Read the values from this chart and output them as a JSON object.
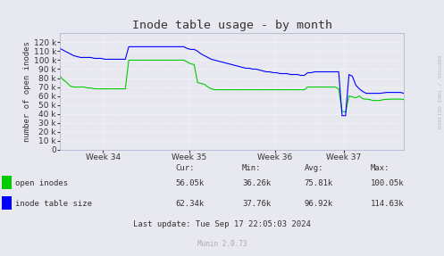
{
  "title": "Inode table usage - by month",
  "ylabel": "number of open inodes",
  "xlabel_ticks": [
    "Week 34",
    "Week 35",
    "Week 36",
    "Week 37"
  ],
  "ylim": [
    0,
    130000
  ],
  "yticks": [
    0,
    10000,
    20000,
    30000,
    40000,
    50000,
    60000,
    70000,
    80000,
    90000,
    100000,
    110000,
    120000
  ],
  "bg_color": "#e8e8f0",
  "plot_bg_color": "#e8e8f0",
  "grid_color": "#ffffff",
  "line_color_green": "#00cc00",
  "line_color_blue": "#0000ff",
  "legend_label_green": "open inodes",
  "legend_label_blue": "inode table size",
  "footer_text": "Munin 2.0.73",
  "stats_cur_green": "56.05k",
  "stats_min_green": "36.26k",
  "stats_avg_green": "75.81k",
  "stats_max_green": "100.05k",
  "stats_cur_blue": "62.34k",
  "stats_min_blue": "37.76k",
  "stats_avg_blue": "96.92k",
  "stats_max_blue": "114.63k",
  "last_update": "Last update: Tue Sep 17 22:05:03 2024",
  "watermark": "RRDTOOL / TOBI OETIKER",
  "title_fontsize": 9.5,
  "axis_fontsize": 6.5,
  "legend_fontsize": 6.5,
  "footer_fontsize": 5.5,
  "green_x": [
    0,
    4,
    8,
    12,
    16,
    20,
    24,
    28,
    32,
    36,
    40,
    44,
    48,
    52,
    56,
    60,
    64,
    68,
    72,
    76,
    80,
    84,
    88,
    92,
    96,
    100,
    104,
    108,
    112,
    116,
    120,
    124,
    128,
    132,
    136,
    140,
    144,
    148,
    152,
    156,
    160,
    164,
    168,
    172,
    176,
    180,
    184,
    188,
    192,
    196,
    200,
    204,
    208,
    212,
    216,
    220,
    224,
    228,
    232,
    236,
    240,
    244,
    248,
    252,
    256,
    260,
    264,
    268,
    272,
    276,
    280,
    284,
    288,
    292,
    296,
    300,
    304,
    308,
    312,
    316,
    320,
    324,
    328,
    332,
    336,
    340,
    344,
    348,
    352,
    356,
    360,
    364,
    368,
    372,
    376,
    380,
    384,
    388,
    392,
    396,
    400
  ],
  "green_y": [
    82000,
    78000,
    75000,
    71000,
    70000,
    70000,
    70000,
    70000,
    69000,
    69000,
    68000,
    68000,
    68000,
    68000,
    68000,
    68000,
    68000,
    68000,
    68000,
    68000,
    100000,
    100000,
    100000,
    100000,
    100000,
    100000,
    100000,
    100000,
    100000,
    100000,
    100000,
    100000,
    100000,
    100000,
    100000,
    100000,
    100000,
    98000,
    96000,
    95000,
    75000,
    74000,
    73000,
    70000,
    68000,
    67000,
    67000,
    67000,
    67000,
    67000,
    67000,
    67000,
    67000,
    67000,
    67000,
    67000,
    67000,
    67000,
    67000,
    67000,
    67000,
    67000,
    67000,
    67000,
    67000,
    67000,
    67000,
    67000,
    67000,
    67000,
    67000,
    67000,
    70000,
    70000,
    70000,
    70000,
    70000,
    70000,
    70000,
    70000,
    70000,
    68000,
    43000,
    42000,
    60000,
    59000,
    58000,
    60000,
    57000,
    56500,
    56000,
    55000,
    55000,
    55000,
    56000,
    56200,
    56500,
    56500,
    56500,
    56500,
    56000
  ],
  "blue_x": [
    0,
    4,
    8,
    12,
    16,
    20,
    24,
    28,
    32,
    36,
    40,
    44,
    48,
    52,
    56,
    60,
    64,
    68,
    72,
    76,
    80,
    84,
    88,
    92,
    96,
    100,
    104,
    108,
    112,
    116,
    120,
    124,
    128,
    132,
    136,
    140,
    144,
    148,
    152,
    156,
    160,
    164,
    168,
    172,
    176,
    180,
    184,
    188,
    192,
    196,
    200,
    204,
    208,
    212,
    216,
    220,
    224,
    228,
    232,
    236,
    240,
    244,
    248,
    252,
    256,
    260,
    264,
    268,
    272,
    276,
    280,
    284,
    288,
    292,
    296,
    300,
    304,
    308,
    312,
    316,
    320,
    324,
    328,
    332,
    336,
    340,
    344,
    348,
    352,
    356,
    360,
    364,
    368,
    372,
    376,
    380,
    384,
    388,
    392,
    396,
    400
  ],
  "blue_y": [
    113000,
    111000,
    109000,
    107000,
    105000,
    104000,
    103000,
    103000,
    103000,
    103000,
    102000,
    102000,
    102000,
    101000,
    101000,
    101000,
    101000,
    101000,
    101000,
    101000,
    115000,
    115000,
    115000,
    115000,
    115000,
    115000,
    115000,
    115000,
    115000,
    115000,
    115000,
    115000,
    115000,
    115000,
    115000,
    115000,
    115000,
    113000,
    112000,
    112000,
    110000,
    107000,
    105000,
    103000,
    101000,
    100000,
    99000,
    98000,
    97000,
    96000,
    95000,
    94000,
    93000,
    92000,
    91000,
    91000,
    90000,
    90000,
    89000,
    88000,
    87000,
    87000,
    86000,
    86000,
    85000,
    85000,
    85000,
    84000,
    84000,
    84000,
    83000,
    83000,
    86000,
    86000,
    87000,
    87000,
    87000,
    87000,
    87000,
    87000,
    87000,
    87000,
    38000,
    38000,
    84000,
    82000,
    72000,
    68000,
    65000,
    63000,
    63000,
    63000,
    63000,
    63000,
    63500,
    64000,
    64000,
    64000,
    64000,
    64000,
    63000
  ]
}
